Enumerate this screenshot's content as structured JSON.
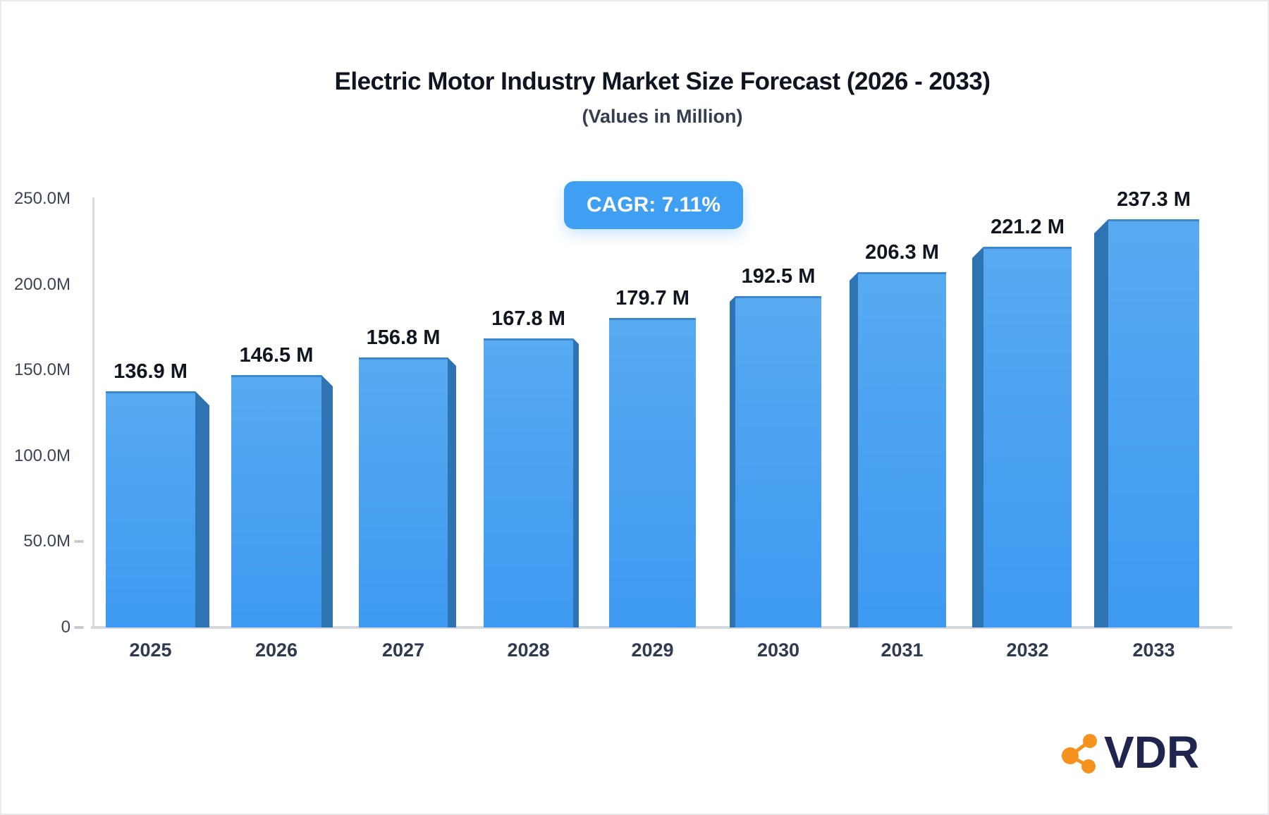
{
  "header": {
    "title": "Electric Motor Industry Market Size Forecast (2026 - 2033)",
    "subtitle": "(Values in Million)",
    "cagr_badge": "CAGR: 7.11%"
  },
  "chart_data": {
    "type": "bar",
    "title": "Electric Motor Industry Market Size Forecast (2026 - 2033)",
    "subtitle": "(Values in Million)",
    "unit": "Million",
    "categories": [
      "2025",
      "2026",
      "2027",
      "2028",
      "2029",
      "2030",
      "2031",
      "2032",
      "2033"
    ],
    "values": [
      136.9,
      146.5,
      156.8,
      167.8,
      179.7,
      192.5,
      206.3,
      221.2,
      237.3
    ],
    "data_labels": [
      "136.9 M",
      "146.5 M",
      "156.8 M",
      "167.8 M",
      "179.7 M",
      "192.5 M",
      "206.3 M",
      "221.2 M",
      "237.3 M"
    ],
    "annotation": "CAGR: 7.11%",
    "y_ticks": [
      {
        "label": "250.0M",
        "value": 250
      },
      {
        "label": "200.0M",
        "value": 200
      },
      {
        "label": "150.0M",
        "value": 150
      },
      {
        "label": "100.0M",
        "value": 100
      },
      {
        "label": "50.0M",
        "value": 50
      },
      {
        "label": "0",
        "value": 0
      }
    ],
    "ylim": [
      0,
      250
    ],
    "xlabel": "",
    "ylabel": "",
    "grid": false,
    "legend": false,
    "style": "3d-columns"
  },
  "branding": {
    "logo_text": "VDR",
    "logo_icon": "share-network-icon"
  },
  "colors": {
    "bar_face": "#3F9EF3",
    "bar_side": "#2E73B2",
    "badge_bg": "#3F9FF3",
    "logo_orange": "#F5921E",
    "logo_navy": "#1F254E",
    "axis_gray": "#D5D8DD",
    "title_text": "#0E1420"
  }
}
